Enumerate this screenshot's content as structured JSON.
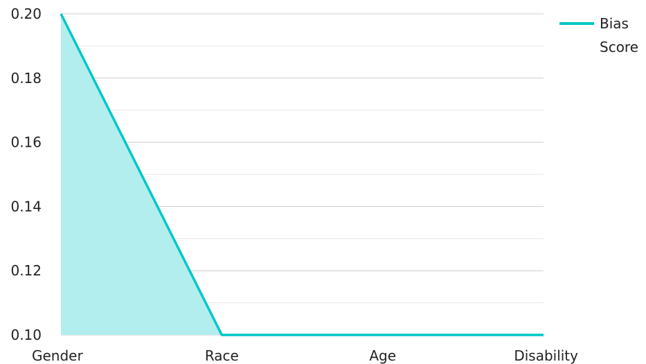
{
  "chart_data": {
    "type": "area",
    "categories": [
      "Gender",
      "Race",
      "Age",
      "Disability"
    ],
    "series": [
      {
        "name": "Bias Score",
        "values": [
          0.2,
          0.1,
          0.1,
          0.1
        ],
        "color": "#00c7c7",
        "fill": "#b3eeee"
      }
    ],
    "ylim": [
      0.1,
      0.2
    ],
    "yticks": [
      "0.10",
      "0.12",
      "0.14",
      "0.16",
      "0.18",
      "0.20"
    ],
    "yticks_values": [
      0.1,
      0.12,
      0.14,
      0.16,
      0.18,
      0.2
    ],
    "minor_grid_values": [
      0.11,
      0.13,
      0.15,
      0.17,
      0.19
    ],
    "grid": true,
    "legend": {
      "label_line1": "Bias",
      "label_line2": "Score",
      "position": "top-right"
    },
    "grid_color": "#cccccc",
    "minor_grid_color": "#e6e6e6",
    "text_color": "#222222"
  }
}
